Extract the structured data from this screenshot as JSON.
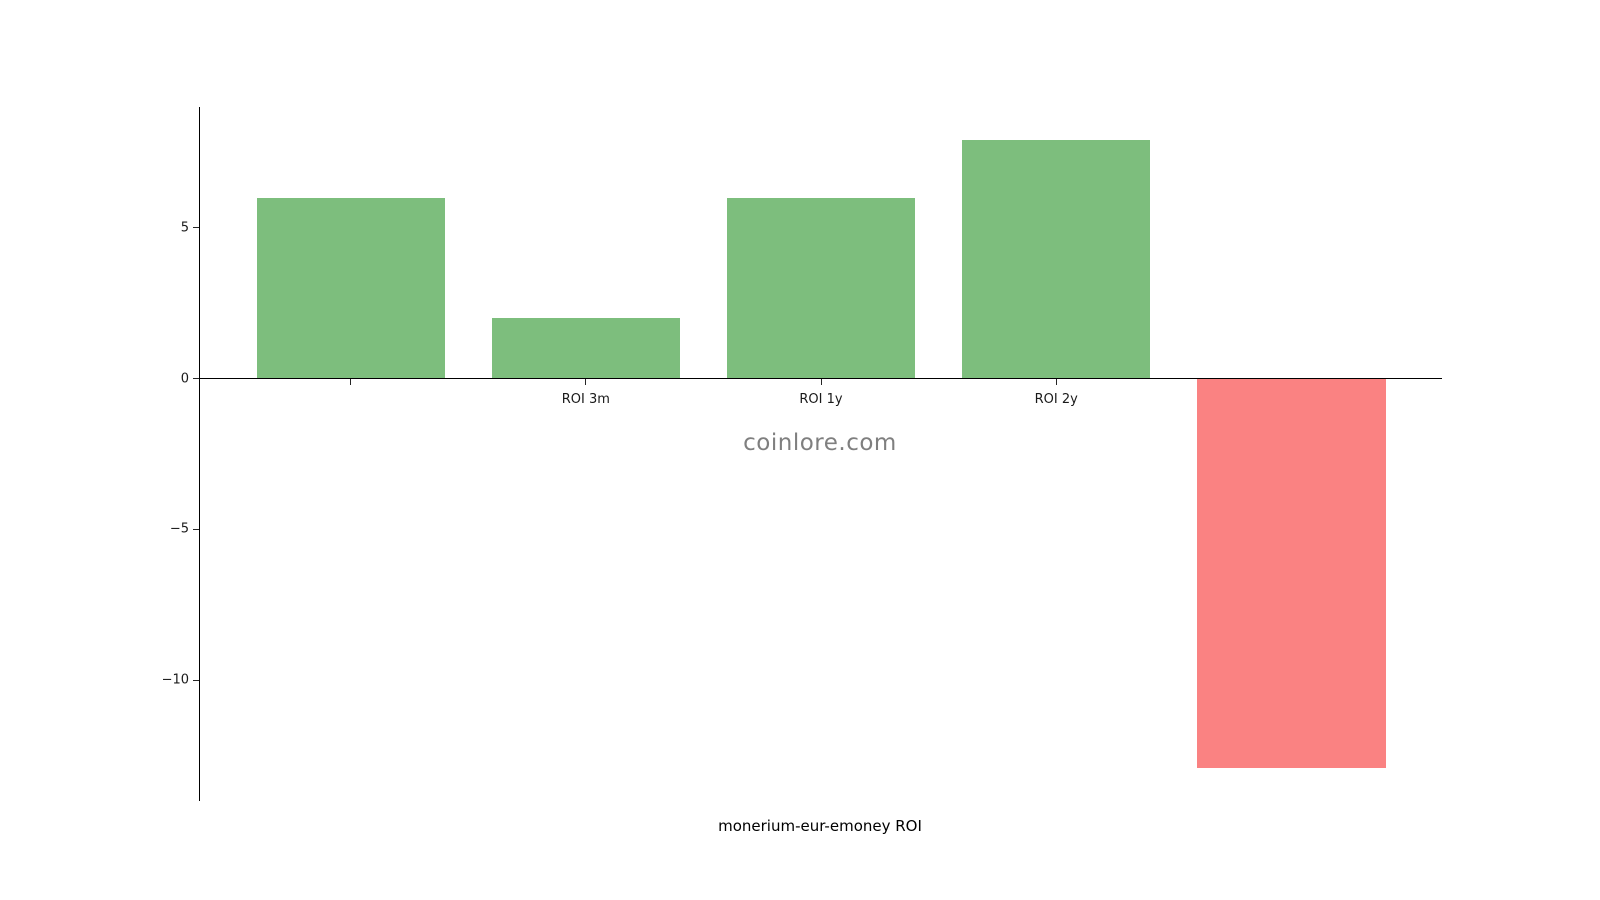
{
  "chart_data": {
    "type": "bar",
    "title": "monerium-eur-emoney ROI",
    "watermark": "coinlore.com",
    "categories": [
      "",
      "ROI 3m",
      "ROI 1y",
      "ROI 2y",
      ""
    ],
    "values": [
      6.0,
      2.0,
      6.0,
      7.9,
      -12.9
    ],
    "series": [
      {
        "name": "ROI",
        "values": [
          6.0,
          2.0,
          6.0,
          7.9,
          -12.9
        ]
      }
    ],
    "xtick_bar_indexes": [
      0,
      1,
      2,
      3
    ],
    "xtick_labels": [
      "",
      "ROI 3m",
      "ROI 1y",
      "ROI 2y"
    ],
    "yticks": [
      5,
      0,
      -5,
      -10
    ],
    "ytick_labels": [
      "5",
      "0",
      "−5",
      "−10"
    ],
    "ylim": [
      -14,
      9
    ],
    "xlabel": "",
    "ylabel": "",
    "grid": false,
    "legend": null,
    "positive_color": "#7dbe7d",
    "negative_color": "#fa8282",
    "axis_color": "#000000",
    "tick_label_color": "#1a1a1a",
    "watermark_color": "#7f7f7f",
    "background_color": "#ffffff"
  }
}
